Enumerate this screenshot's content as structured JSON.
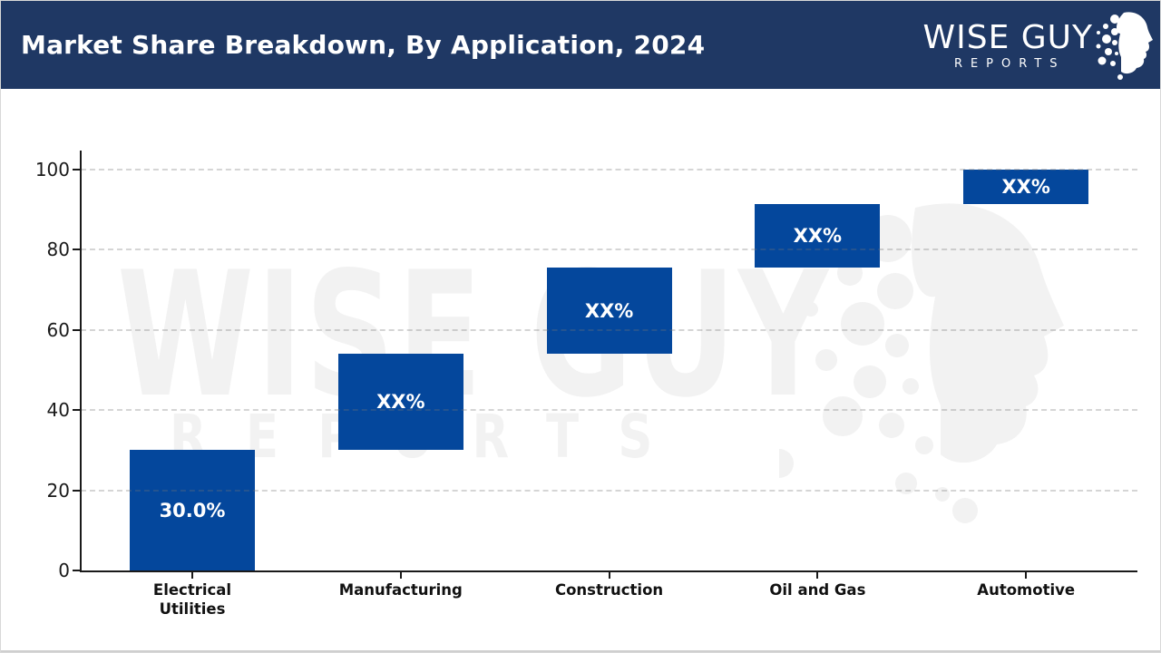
{
  "header": {
    "title": "Market Share Breakdown, By Application, 2024",
    "bg_color": "#1f3864",
    "logo": {
      "line1": "WISE GUY",
      "line2": "REPORTS"
    }
  },
  "watermark": {
    "line1": "WISE GUY",
    "line2": "REPORTS"
  },
  "chart_data": {
    "type": "bar",
    "subtype": "waterfall-stacked-segments",
    "title": "Market Share Breakdown, By Application, 2024",
    "categories": [
      "Electrical Utilities",
      "Manufacturing",
      "Construction",
      "Oil and Gas",
      "Automotive"
    ],
    "tick_labels": [
      "Electrical\nUtilities",
      "Manufacturing",
      "Construction",
      "Oil and Gas",
      "Automotive"
    ],
    "segments": [
      {
        "category": "Electrical Utilities",
        "start": 0,
        "end": 30,
        "label": "30.0%"
      },
      {
        "category": "Manufacturing",
        "start": 30,
        "end": 54,
        "label": "XX%"
      },
      {
        "category": "Construction",
        "start": 54,
        "end": 75.5,
        "label": "XX%"
      },
      {
        "category": "Oil and Gas",
        "start": 75.5,
        "end": 91.3,
        "label": "XX%"
      },
      {
        "category": "Automotive",
        "start": 91.3,
        "end": 100,
        "label": "XX%"
      }
    ],
    "yticks": [
      0,
      20,
      40,
      60,
      80,
      100
    ],
    "ylim": [
      0,
      104.7
    ],
    "xlabel": "",
    "ylabel": "",
    "grid": "horizontal-dashed",
    "legend": "none",
    "bar_color": "#04479c",
    "bar_label_color": "#ffffff"
  }
}
